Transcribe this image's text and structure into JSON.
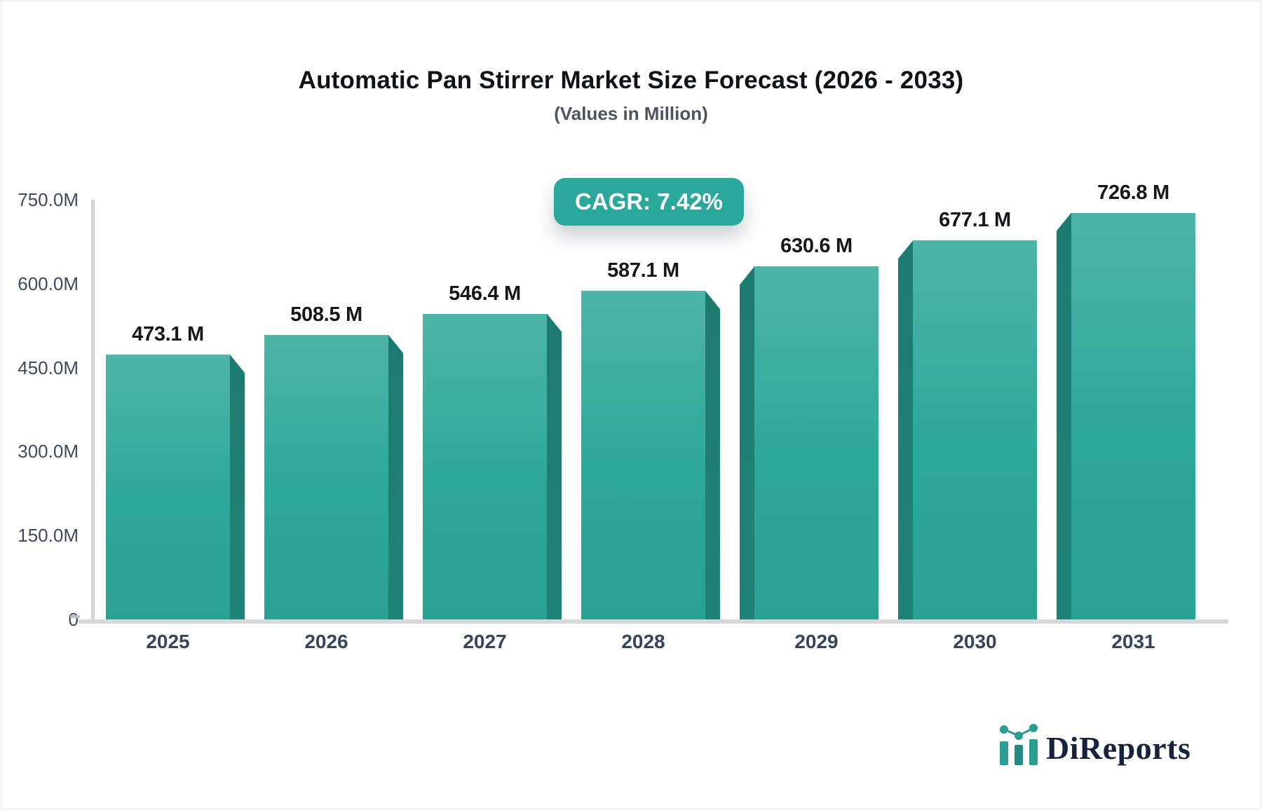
{
  "page": {
    "background": "#ffffff"
  },
  "header": {
    "title": "Automatic Pan Stirrer Market Size Forecast (2026 - 2033)",
    "subtitle": "(Values in Million)"
  },
  "badge": {
    "label": "CAGR: 7.42%",
    "color": "#2aa89b",
    "text_color": "#ffffff"
  },
  "logo": {
    "text": "DiReports",
    "icon": "bar-chart-with-dots-icon",
    "text_color": "#15243c",
    "icon_color": "#2b9d92"
  },
  "chart_data": {
    "type": "bar",
    "title": "Automatic Pan Stirrer Market Size Forecast (2026 - 2033)",
    "subtitle": "(Values in Million)",
    "annotation": "CAGR: 7.42%",
    "categories": [
      "2025",
      "2026",
      "2027",
      "2028",
      "2029",
      "2030",
      "2031"
    ],
    "values": [
      473.1,
      508.5,
      546.4,
      587.1,
      630.6,
      677.1,
      726.8
    ],
    "bar_labels": [
      "473.1 M",
      "508.5 M",
      "546.4 M",
      "587.1 M",
      "630.6 M",
      "677.1 M",
      "726.8 M"
    ],
    "unit": "Million",
    "xlabel": "",
    "ylabel": "",
    "ylim": [
      0,
      750
    ],
    "y_ticks": [
      {
        "value": 0,
        "label": "0"
      },
      {
        "value": 150,
        "label": "150.0M"
      },
      {
        "value": 300,
        "label": "300.0M"
      },
      {
        "value": 450,
        "label": "450.0M"
      },
      {
        "value": 600,
        "label": "600.0M"
      },
      {
        "value": 750,
        "label": "750.0M"
      }
    ],
    "grid": false,
    "legend": "none",
    "style": "3d-bars",
    "bar_face_color": "#2fa89b",
    "bar_side_color": "#1f7e73",
    "axis_color": "#d3d5da",
    "label_color": "#15171a",
    "tick_color": "#3d4b5f"
  }
}
